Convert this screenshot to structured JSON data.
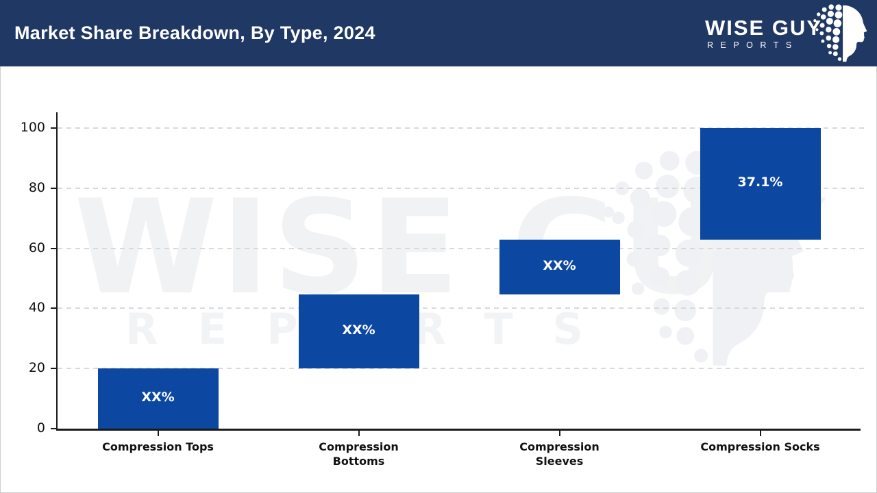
{
  "header": {
    "title": "Market Share Breakdown, By Type, 2024",
    "bg_color": "#203864",
    "logo": {
      "wordmark": "WISE GUY",
      "subtext": "REPORTS",
      "face_icon": "dotted-head-profile"
    }
  },
  "watermark": {
    "wordmark": "WISE GUY",
    "subtext": "REPORTS",
    "color": "#f1f2f4"
  },
  "chart_data": {
    "type": "bar",
    "variant": "waterfall",
    "title": "Market Share Breakdown, By Type, 2024",
    "xlabel": "",
    "ylabel": "",
    "categories": [
      "Compression Tops",
      "Compression Bottoms",
      "Compression Sleeves",
      "Compression Socks"
    ],
    "category_label_lines": [
      [
        "Compression Tops"
      ],
      [
        "Compression",
        "Bottoms"
      ],
      [
        "Compression",
        "Sleeves"
      ],
      [
        "Compression Socks"
      ]
    ],
    "segments": [
      {
        "start": 0,
        "end": 20,
        "value_label": "XX%"
      },
      {
        "start": 20,
        "end": 44.6,
        "value_label": "XX%"
      },
      {
        "start": 44.6,
        "end": 62.9,
        "value_label": "XX%"
      },
      {
        "start": 62.9,
        "end": 100,
        "value_label": "37.1%"
      }
    ],
    "yticks": [
      0,
      20,
      40,
      60,
      80,
      100
    ],
    "ylim": [
      0,
      105
    ],
    "grid": "horizontal-dashed",
    "legend": "none",
    "bar_color": "#0c47a1",
    "value_label_color": "#ffffff",
    "axis_color": "#1a1a1a",
    "gridline_color": "#d9d9d9",
    "tick_label_color": "#111111"
  }
}
